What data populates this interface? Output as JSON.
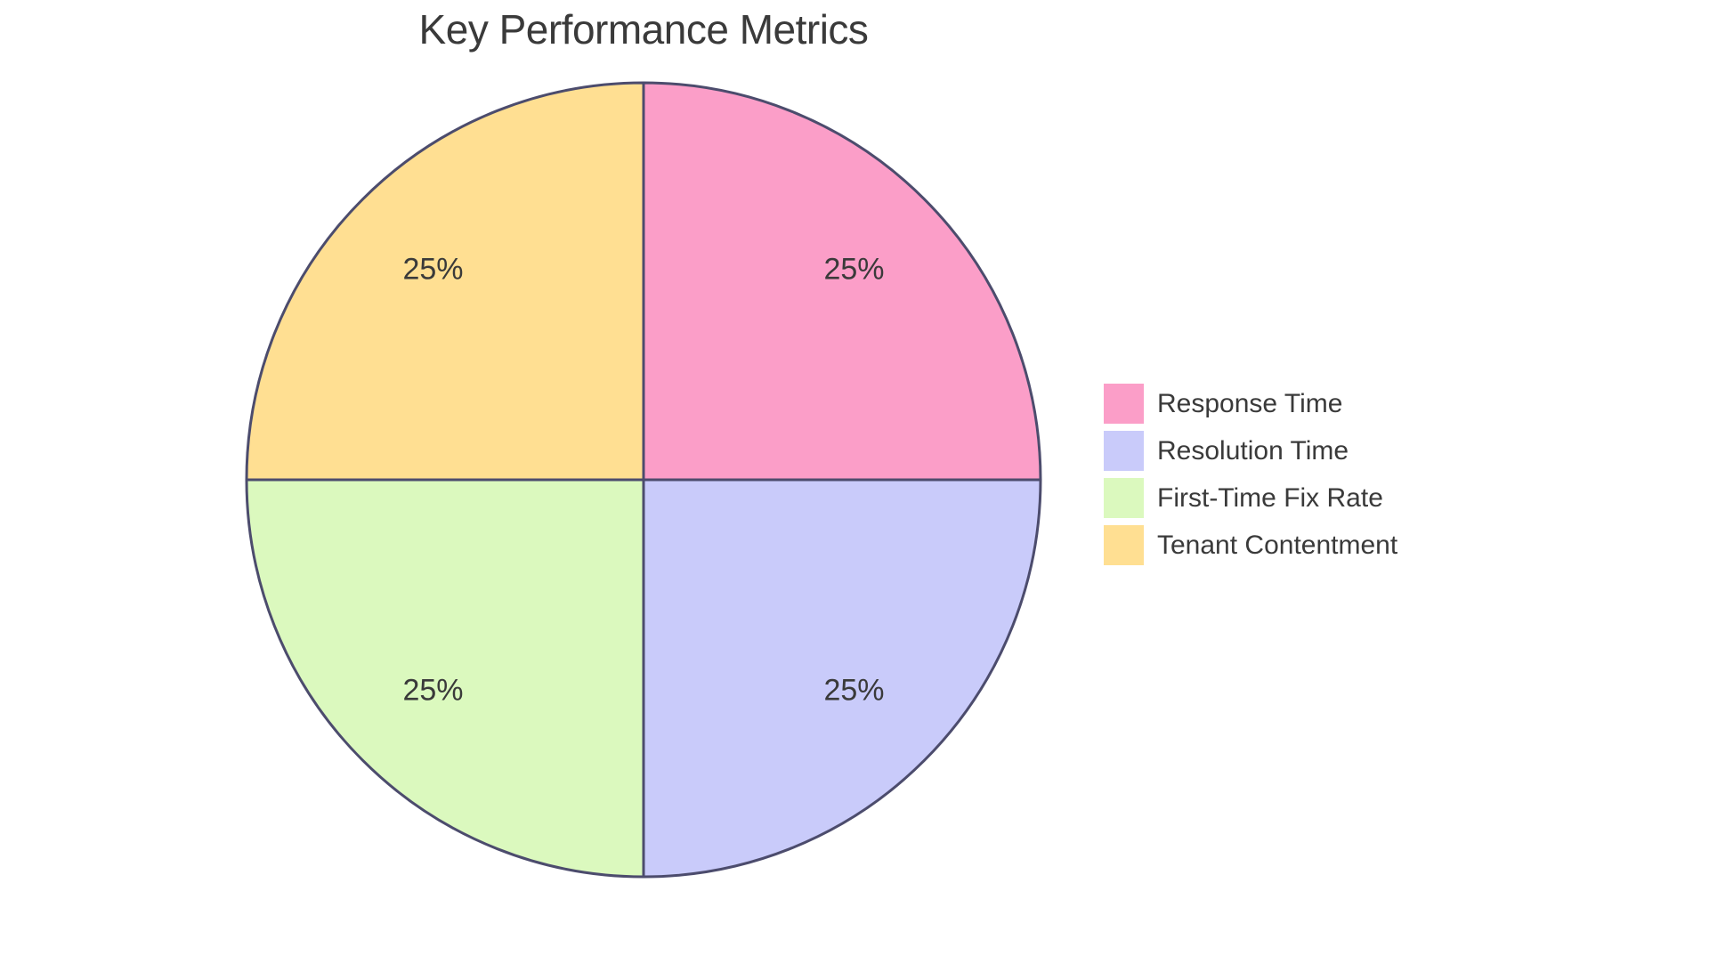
{
  "page": {
    "background": "#FFFFFF"
  },
  "chart_data": {
    "type": "pie",
    "title": "Key Performance Metrics",
    "labels": [
      "Response Time",
      "Resolution Time",
      "First-Time Fix Rate",
      "Tenant Contentment"
    ],
    "values": [
      25,
      25,
      25,
      25
    ],
    "value_labels": [
      "25%",
      "25%",
      "25%",
      "25%"
    ],
    "colors": [
      "#FB9EC8",
      "#C9CBFA",
      "#DBF9BE",
      "#FFDF92"
    ],
    "edge_color": "#4C4C6D",
    "text_color": "#3A3A3A",
    "start_angle": "top",
    "direction": "clockwise",
    "label_radius_fraction": 0.75,
    "legend_position": "right",
    "grid": false
  }
}
